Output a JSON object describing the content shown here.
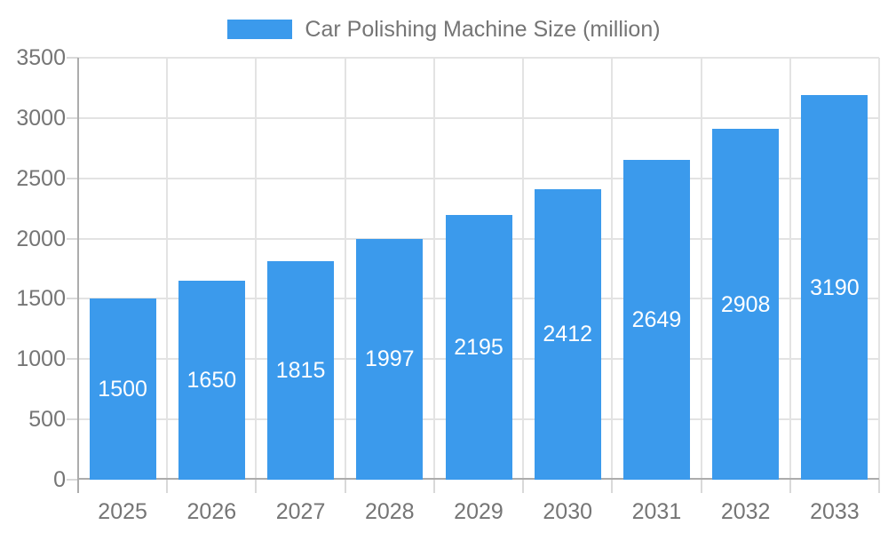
{
  "legend": {
    "label": "Car Polishing Machine Size (million)"
  },
  "chart_data": {
    "type": "bar",
    "title": "Car Polishing Machine Size (million)",
    "categories": [
      "2025",
      "2026",
      "2027",
      "2028",
      "2029",
      "2030",
      "2031",
      "2032",
      "2033"
    ],
    "values": [
      1500,
      1650,
      1815,
      1997,
      2195,
      2412,
      2649,
      2908,
      3190
    ],
    "series": [
      {
        "name": "Car Polishing Machine Size (million)",
        "values": [
          1500,
          1650,
          1815,
          1997,
          2195,
          2412,
          2649,
          2908,
          3190
        ]
      }
    ],
    "xlabel": "",
    "ylabel": "",
    "ylim": [
      0,
      3500
    ],
    "yticks": [
      0,
      500,
      1000,
      1500,
      2000,
      2500,
      3000,
      3500
    ],
    "grid": true,
    "legend_position": "top",
    "bar_labels_inside": true,
    "colors": {
      "bar": "#3B9AEC",
      "bar_value_label": "#FFFFFF",
      "axis_text": "#757575",
      "legend_text": "#757575",
      "gridline": "#E3E3E3",
      "tick": "#D9D9D9",
      "axis_line": "#ACACAC",
      "background": "#FFFFFF"
    }
  }
}
